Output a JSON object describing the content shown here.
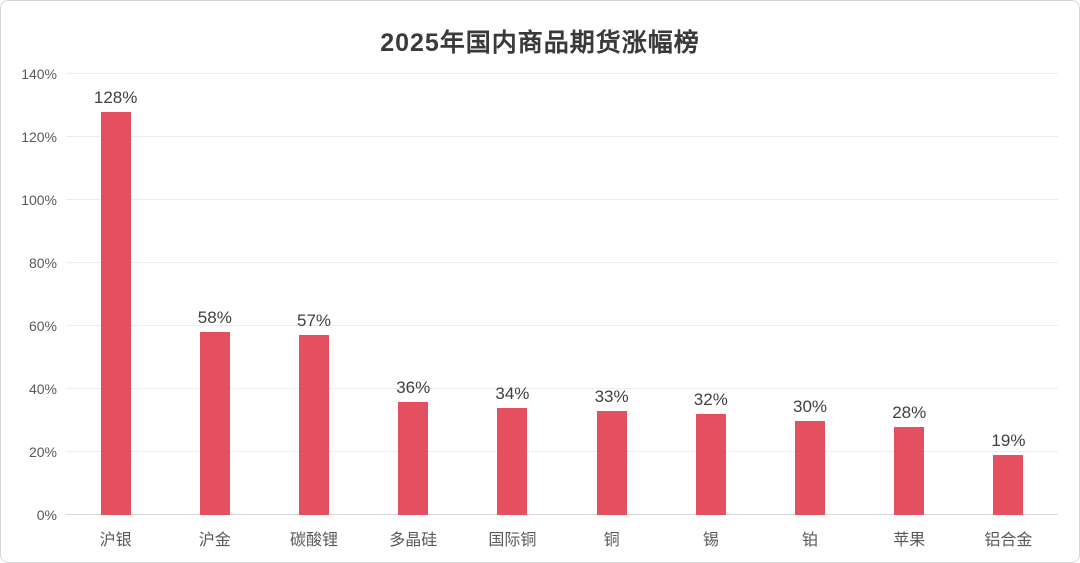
{
  "title": "2025年国内商品期货涨幅榜",
  "colors": {
    "bar": "#e4505f",
    "title_text": "#3a3a3a",
    "value_label_text": "#404040",
    "tick_text": "#595959",
    "gridline": "#ececec",
    "axis_line": "#d6d6d6",
    "card_border": "#d7d7d7",
    "background": "#ffffff"
  },
  "chart_data": {
    "type": "bar",
    "title": "2025年国内商品期货涨幅榜",
    "categories": [
      "沪银",
      "沪金",
      "碳酸锂",
      "多晶硅",
      "国际铜",
      "铜",
      "锡",
      "铂",
      "苹果",
      "铝合金"
    ],
    "values": [
      128,
      58,
      57,
      36,
      34,
      33,
      32,
      30,
      28,
      19
    ],
    "data_labels": [
      "128%",
      "58%",
      "57%",
      "36%",
      "34%",
      "33%",
      "32%",
      "30%",
      "28%",
      "19%"
    ],
    "xlabel": "",
    "ylabel": "",
    "ylim": [
      0,
      140
    ],
    "ytick_step": 20,
    "yticks": [
      "0%",
      "20%",
      "40%",
      "60%",
      "80%",
      "100%",
      "120%",
      "140%"
    ],
    "grid": true,
    "legend": false,
    "data_labels_position": "above-bar",
    "bar_color": "#e4505f"
  }
}
